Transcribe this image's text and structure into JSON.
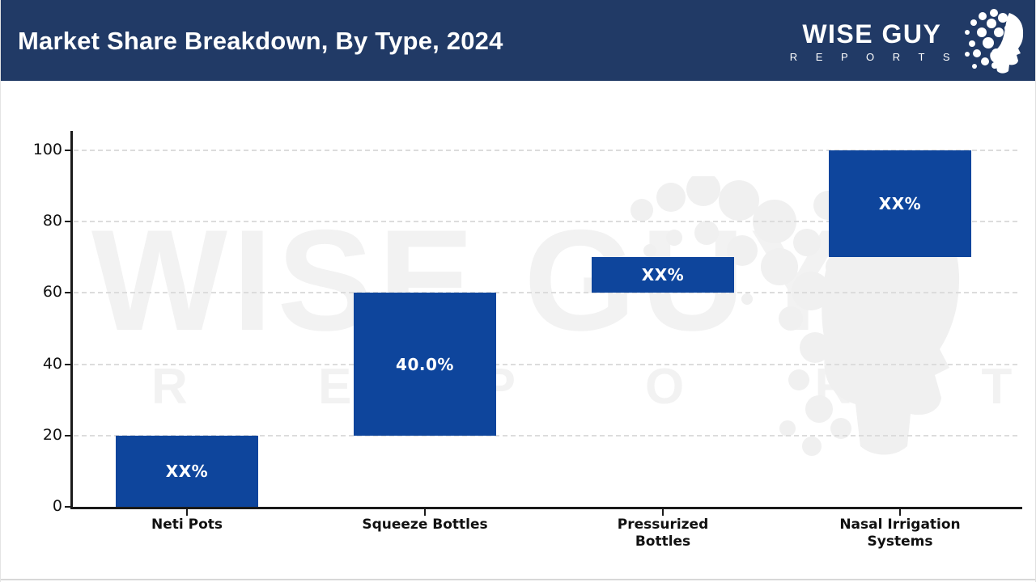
{
  "header": {
    "title": "Market Share Breakdown, By Type, 2024",
    "brand": {
      "line1": "WISE GUY",
      "line2": "R E P O R T S"
    }
  },
  "watermark": {
    "line1": "WISE GUY",
    "line2": "R E P O R T S"
  },
  "chart_data": {
    "type": "bar",
    "subtype": "floating-waterfall",
    "title": "Market Share Breakdown, By Type, 2024",
    "categories": [
      "Neti Pots",
      "Squeeze Bottles",
      "Pressurized Bottles",
      "Nasal Irrigation Systems"
    ],
    "bars": [
      {
        "category": "Neti Pots",
        "start": 0,
        "end": 20,
        "value_label": "XX%"
      },
      {
        "category": "Squeeze Bottles",
        "start": 20,
        "end": 60,
        "value_label": "40.0%"
      },
      {
        "category": "Pressurized Bottles",
        "start": 60,
        "end": 70,
        "value_label": "XX%"
      },
      {
        "category": "Nasal Irrigation Systems",
        "start": 70,
        "end": 100,
        "value_label": "XX%"
      }
    ],
    "y_ticks": [
      0,
      20,
      40,
      60,
      80,
      100
    ],
    "ylim": [
      0,
      105
    ],
    "xlabel": "",
    "ylabel": "",
    "grid": "horizontal-dashed",
    "legend": "none",
    "bar_color": "#0e459c",
    "grid_color": "#dcdcdc",
    "axis_color": "#1a1a1a",
    "header_color": "#213a66",
    "watermark_color": "#f2f2f2"
  }
}
